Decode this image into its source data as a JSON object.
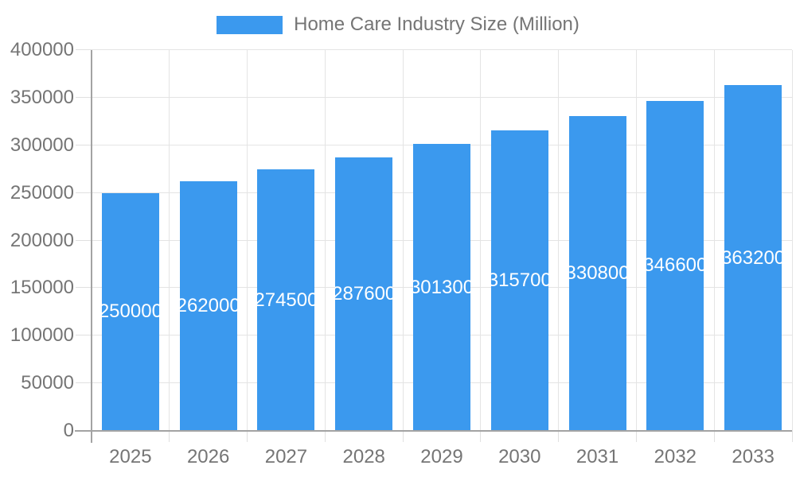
{
  "legend": {
    "label": "Home Care Industry Size (Million)"
  },
  "colors": {
    "bar": "#3b99ee",
    "axis_line": "#a3a3a3",
    "gridline": "#e4e4e4",
    "tick": "#e0e0e0",
    "axis_text": "#757575",
    "bar_label_text": "#ffffff",
    "background": "#ffffff"
  },
  "chart_data": {
    "type": "bar",
    "title": "Home Care Industry Size (Million)",
    "series_name": "Home Care Industry Size (Million)",
    "categories": [
      "2025",
      "2026",
      "2027",
      "2028",
      "2029",
      "2030",
      "2031",
      "2032",
      "2033"
    ],
    "values": [
      250000,
      262000,
      274500,
      287600,
      301300,
      315700,
      330800,
      346600,
      363200
    ],
    "xlabel": "",
    "ylabel": "",
    "ylim": [
      0,
      400000
    ],
    "ytick_step": 50000,
    "yticks": [
      0,
      50000,
      100000,
      150000,
      200000,
      250000,
      300000,
      350000,
      400000
    ],
    "bar_labels_visible": true,
    "grid": "both",
    "legend_position": "top-center"
  }
}
